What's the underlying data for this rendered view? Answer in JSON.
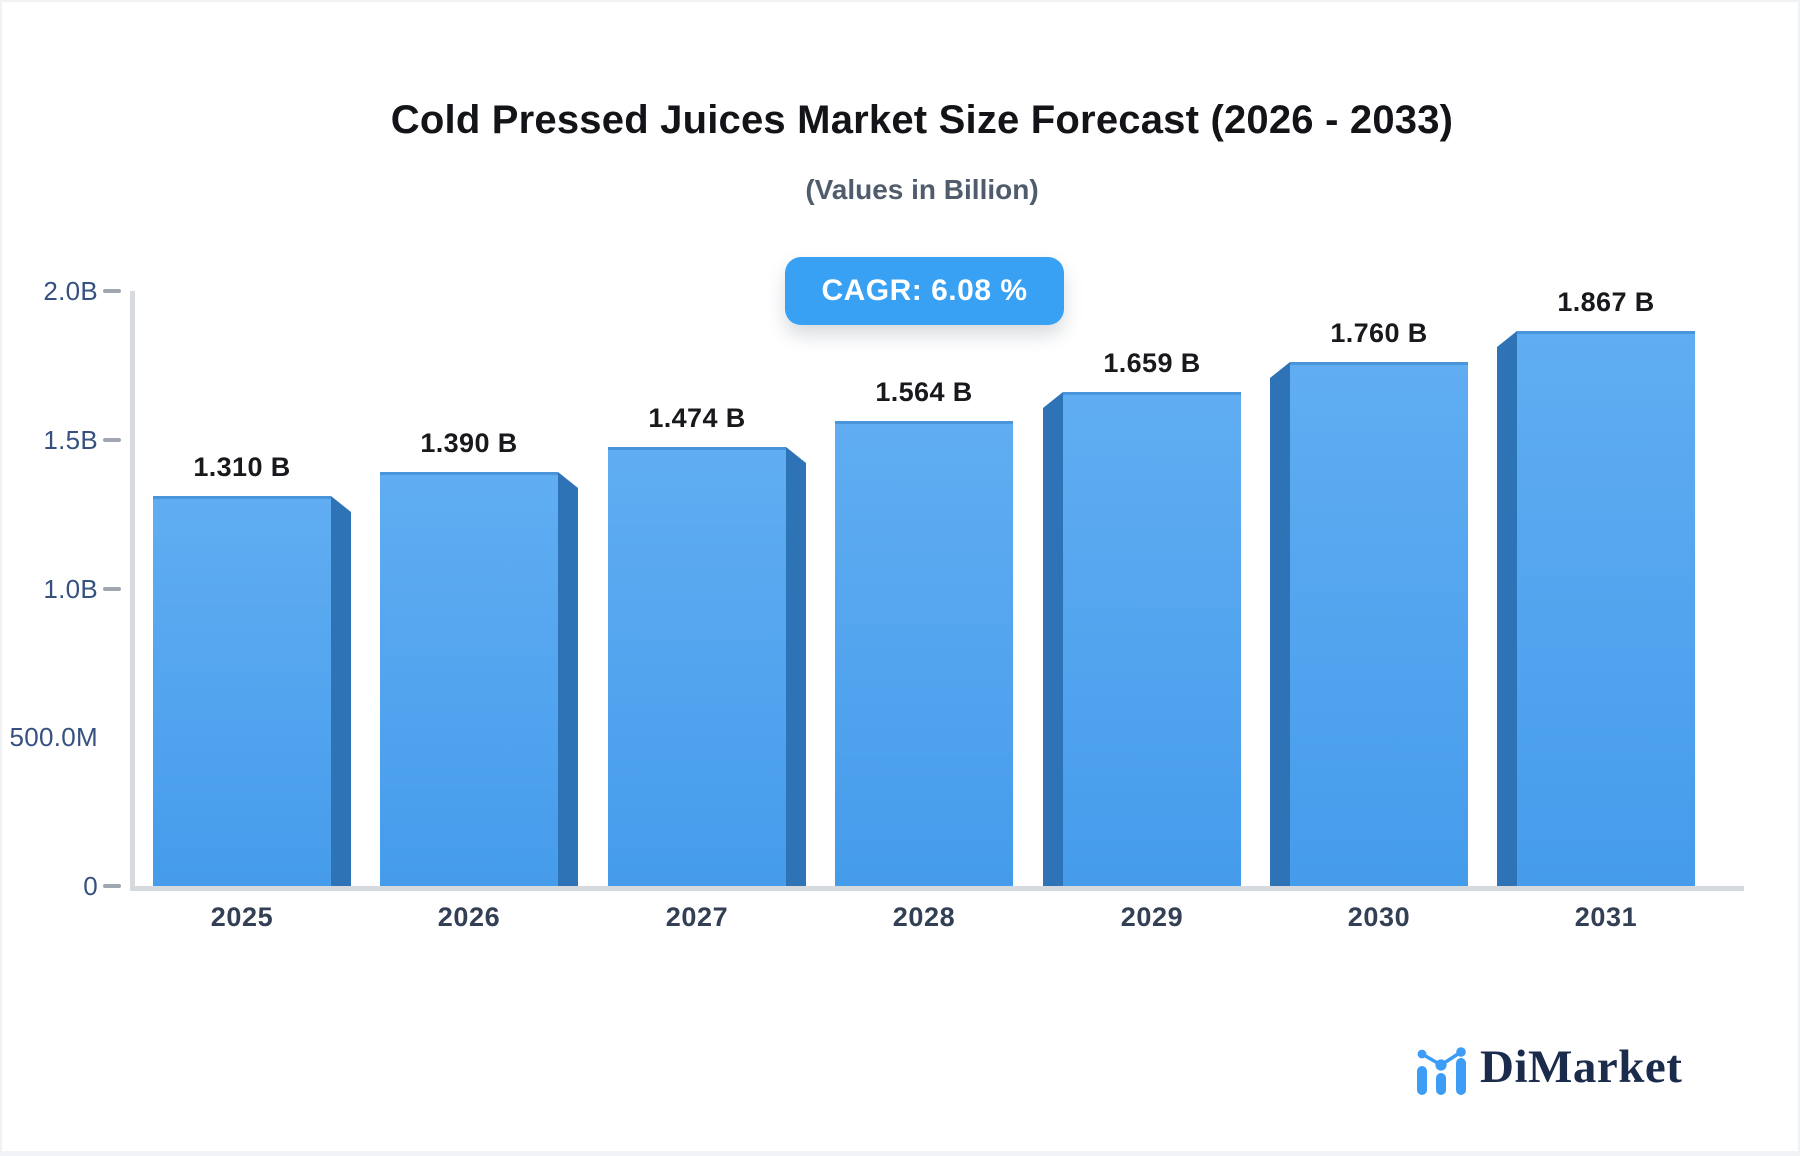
{
  "chart_data": {
    "type": "bar",
    "title": "Cold Pressed Juices Market Size Forecast (2026 - 2033)",
    "subtitle": "(Values in Billion)",
    "annotation": "CAGR: 6.08 %",
    "categories": [
      "2025",
      "2026",
      "2027",
      "2028",
      "2029",
      "2030",
      "2031"
    ],
    "values": [
      1.31,
      1.39,
      1.474,
      1.564,
      1.659,
      1.76,
      1.867
    ],
    "bar_labels": [
      "1.310 B",
      "1.390 B",
      "1.474 B",
      "1.564 B",
      "1.659 B",
      "1.760 B",
      "1.867 B"
    ],
    "yticks": [
      {
        "label": "2.0B",
        "value": 2.0,
        "has_dash": true
      },
      {
        "label": "1.5B",
        "value": 1.5,
        "has_dash": true
      },
      {
        "label": "1.0B",
        "value": 1.0,
        "has_dash": true
      },
      {
        "label": "500.0M",
        "value": 0.5,
        "has_dash": false
      },
      {
        "label": "0",
        "value": 0,
        "has_dash": true
      }
    ],
    "ylim": [
      0,
      2.0
    ],
    "xlabel": "",
    "ylabel": "",
    "legend": "none",
    "grid": "off"
  },
  "brand": {
    "name": "DiMarket"
  },
  "colors": {
    "bar_face_top": "#60adf2",
    "bar_face_bottom": "#459ceb",
    "bar_side": "#2d73b6",
    "badge_bg": "#38a1f3",
    "badge_text": "#ffffff",
    "axis_line": "#d6d9de",
    "brand_blue": "#3d9cf5",
    "brand_navy": "#1b2b4c"
  }
}
